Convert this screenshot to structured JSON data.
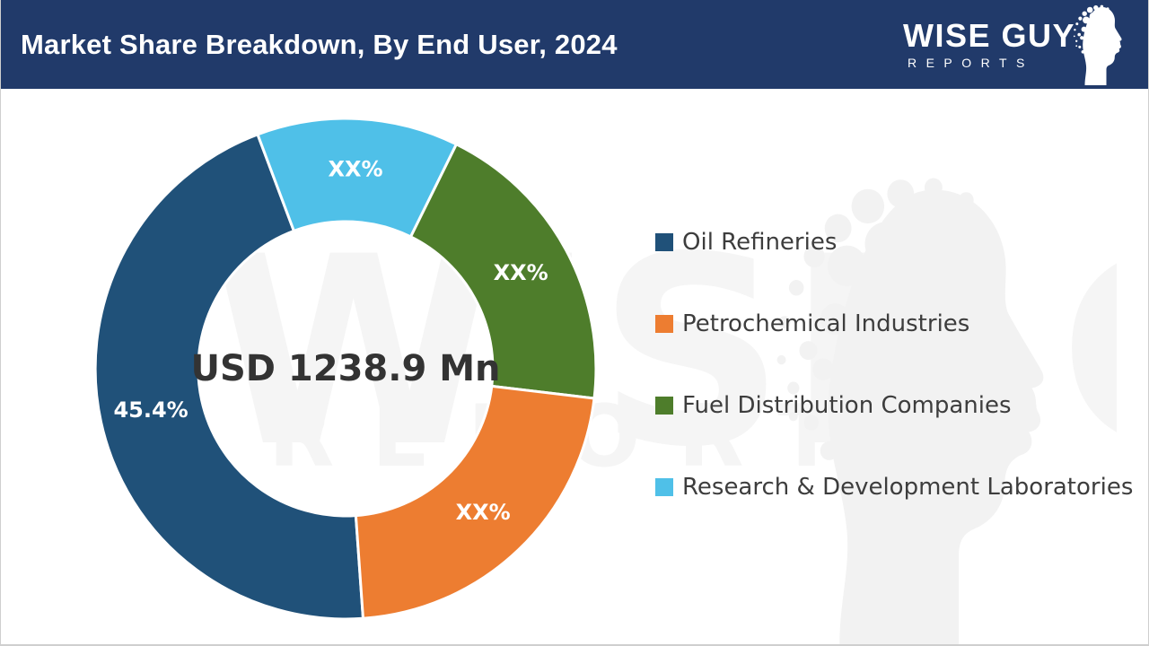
{
  "header": {
    "title": "Market Share Breakdown, By End User, 2024",
    "logo": {
      "line1": "WISE GUY",
      "line2": "REPORTS"
    }
  },
  "watermark": {
    "line1": "WISE GUY",
    "line2": "REPORTS"
  },
  "chart_data": {
    "type": "pie",
    "subtype": "donut",
    "center_label": "USD 1238.9 Mn",
    "start_angle_deg": 176,
    "segments": [
      {
        "name": "Oil Refineries",
        "label": "45.4%",
        "value": 45.4,
        "color": "#205179"
      },
      {
        "name": "Research & Development Laboratories",
        "label": "XX%",
        "value": 13.0,
        "color": "#4fc0e8"
      },
      {
        "name": "Fuel Distribution Companies",
        "label": "XX%",
        "value": 19.6,
        "color": "#4e7d2b"
      },
      {
        "name": "Petrochemical Industries",
        "label": "XX%",
        "value": 22.0,
        "color": "#ed7d31"
      }
    ]
  },
  "legend": {
    "items": [
      {
        "label": "Oil Refineries",
        "color": "#205179"
      },
      {
        "label": "Petrochemical Industries",
        "color": "#ed7d31"
      },
      {
        "label": "Fuel Distribution Companies",
        "color": "#4e7d2b"
      },
      {
        "label": "Research & Development Laboratories",
        "color": "#4fc0e8"
      }
    ]
  }
}
